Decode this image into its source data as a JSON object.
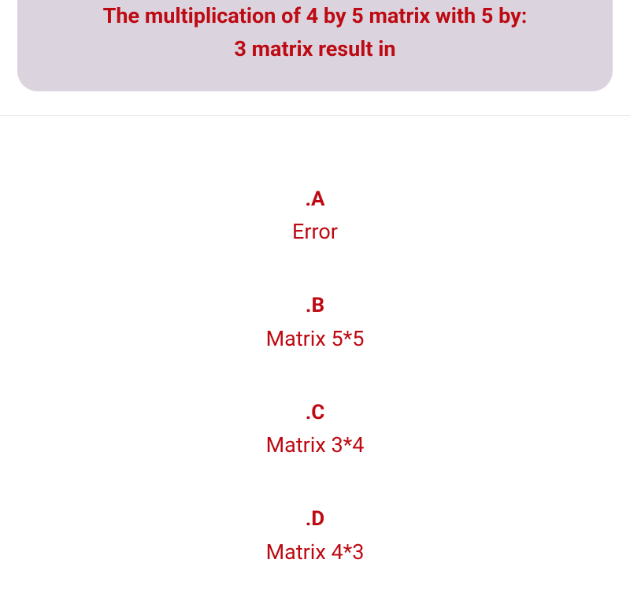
{
  "question": {
    "line1": "The multiplication of 4 by 5 matrix with 5 by:",
    "line2": "3 matrix result in"
  },
  "options": [
    {
      "label": ".A",
      "text": "Error"
    },
    {
      "label": ".B",
      "text": "Matrix 5*5"
    },
    {
      "label": ".C",
      "text": "Matrix 3*4"
    },
    {
      "label": ".D",
      "text": "Matrix 4*3"
    }
  ],
  "colors": {
    "question_bg": "#dbd4de",
    "text_red": "#bd0a13",
    "page_bg": "#ffffff",
    "divider": "#e8e8e8"
  }
}
